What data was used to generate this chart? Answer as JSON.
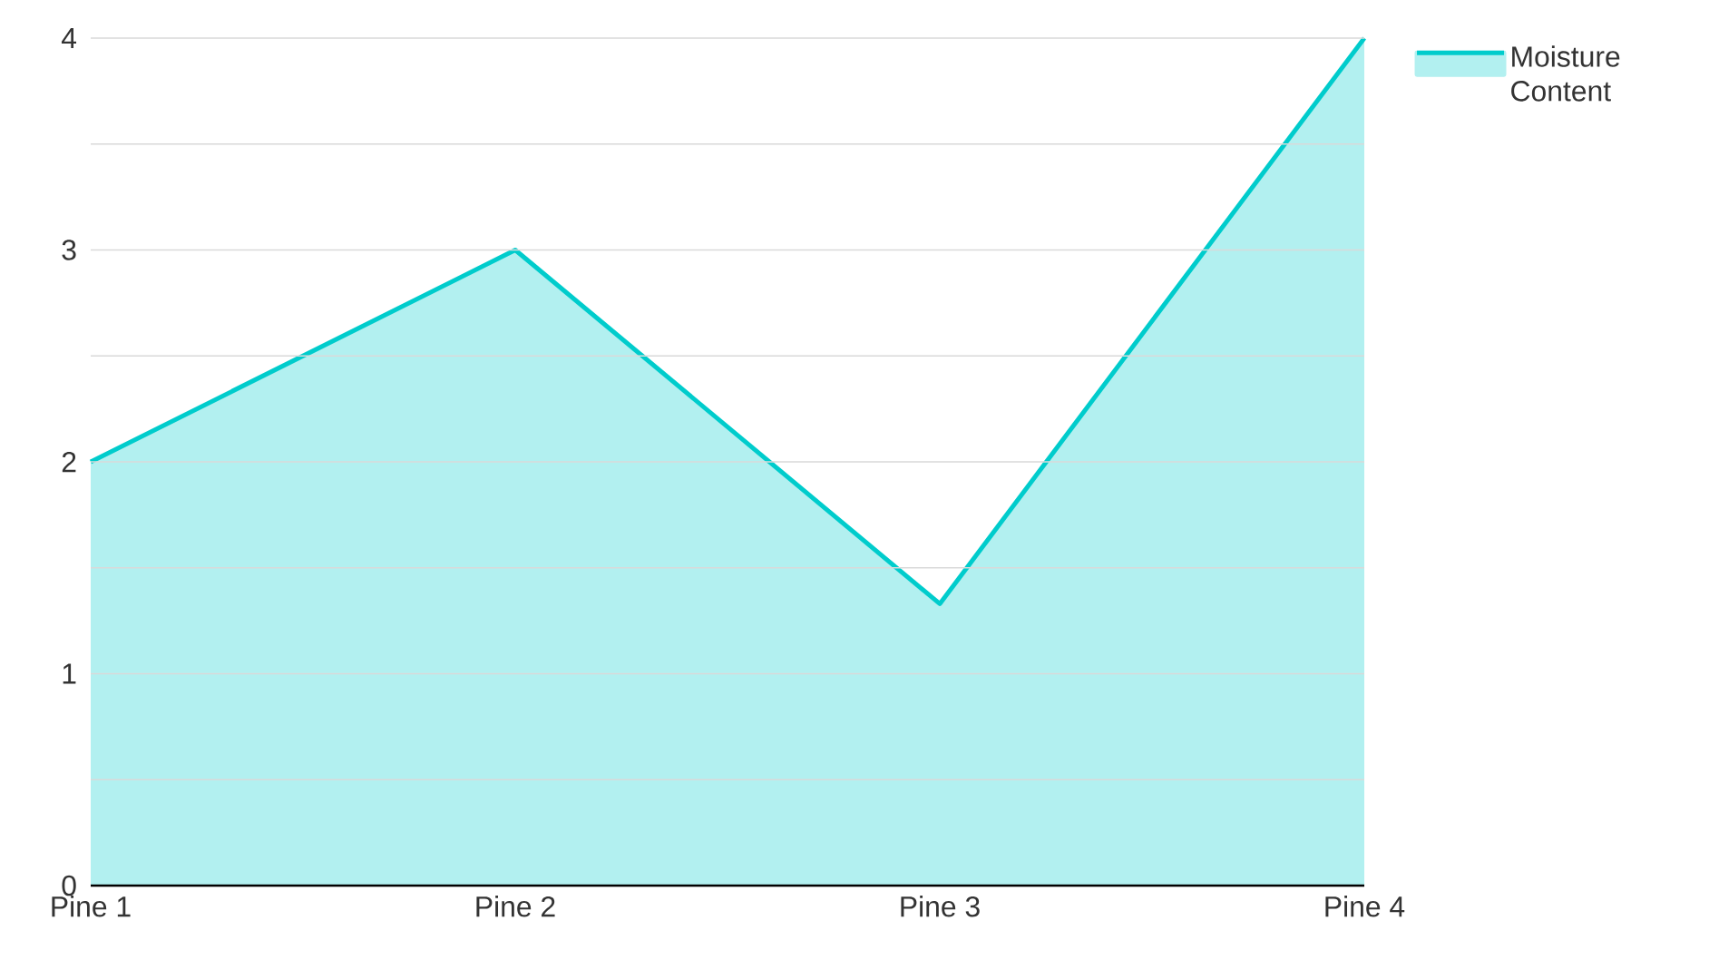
{
  "chart_data": {
    "type": "area",
    "categories": [
      "Pine 1",
      "Pine 2",
      "Pine 3",
      "Pine 4"
    ],
    "series": [
      {
        "name": "Moisture Content",
        "color": "#00cccc",
        "values": [
          2,
          3,
          1.33,
          4
        ]
      }
    ],
    "ylim": [
      0,
      4
    ],
    "yticks": [
      0,
      {
        "value": 0.5,
        "label": null
      },
      1,
      {
        "value": 1.5,
        "label": null
      },
      2,
      {
        "value": 2.5,
        "label": null
      },
      3,
      {
        "value": 3.5,
        "label": null
      },
      4
    ],
    "grid": "y",
    "legend": "top right"
  }
}
